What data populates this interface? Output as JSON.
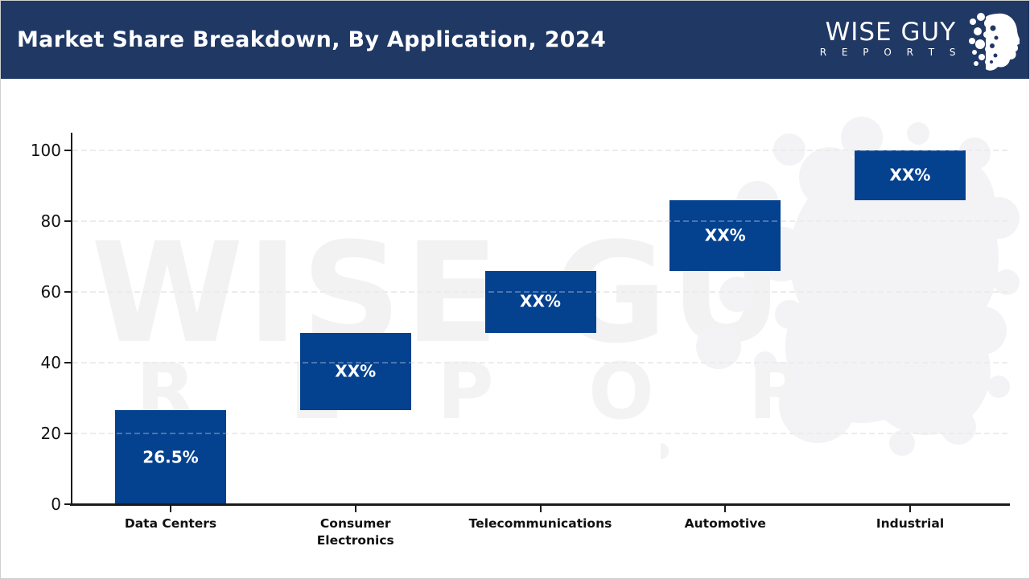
{
  "header": {
    "title": "Market Share Breakdown, By Application, 2024",
    "logo": {
      "line1": "WISE GUY",
      "line2": "R E P O R T S"
    }
  },
  "watermark": {
    "line1": "WISE GUY",
    "line2": "R E P O R T S"
  },
  "colors": {
    "header_bg": "#203864",
    "bar": "#04418f",
    "grid": "#e4e4e4",
    "axis": "#1a1a1a",
    "bar_label": "#ffffff"
  },
  "chart_data": {
    "type": "bar",
    "subtype": "waterfall",
    "title": "Market Share Breakdown, By Application, 2024",
    "categories": [
      "Data Centers",
      "Consumer Electronics",
      "Telecommunications",
      "Automotive",
      "Industrial"
    ],
    "segments": [
      {
        "category": "Data Centers",
        "start": 0,
        "end": 26.5,
        "value": 26.5,
        "label": "26.5%"
      },
      {
        "category": "Consumer Electronics",
        "start": 26.5,
        "end": 48.5,
        "value": 22,
        "label": "XX%"
      },
      {
        "category": "Telecommunications",
        "start": 48.5,
        "end": 66,
        "value": 17.5,
        "label": "XX%"
      },
      {
        "category": "Automotive",
        "start": 66,
        "end": 86,
        "value": 20,
        "label": "XX%"
      },
      {
        "category": "Industrial",
        "start": 86,
        "end": 100,
        "value": 14,
        "label": "XX%"
      }
    ],
    "yticks": [
      0,
      20,
      40,
      60,
      80,
      100
    ],
    "ylim": [
      0,
      105
    ],
    "xlabel": "",
    "ylabel": "",
    "grid": "horizontal-dashed",
    "legend": "none"
  }
}
